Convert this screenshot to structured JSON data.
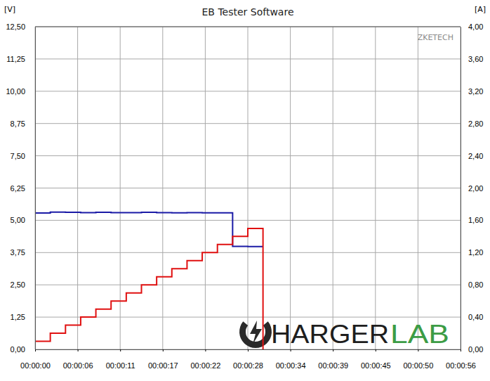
{
  "chart_data": {
    "type": "line",
    "title": "EB Tester Software",
    "y_label": "[V]",
    "y2_label": "[A]",
    "annotations": [
      "ZKETECH",
      "HARGER",
      "LAB"
    ],
    "x": [
      0,
      2,
      4,
      6,
      8,
      10,
      12,
      14,
      16,
      18,
      20,
      22,
      24,
      26,
      28,
      30
    ],
    "series": [
      {
        "color": "#1a1aa6",
        "line_style": "step",
        "axis": "y",
        "values": [
          5.28,
          5.32,
          5.31,
          5.3,
          5.31,
          5.3,
          5.3,
          5.31,
          5.3,
          5.29,
          5.3,
          5.29,
          5.29,
          3.99,
          3.98,
          3.98
        ]
      },
      {
        "color": "#e01010",
        "line_style": "step",
        "axis": "y2",
        "values": [
          0.1,
          0.2,
          0.3,
          0.4,
          0.5,
          0.6,
          0.7,
          0.8,
          0.9,
          1.0,
          1.1,
          1.2,
          1.3,
          1.4,
          1.5,
          0
        ]
      }
    ],
    "xlim": [
      0,
      56
    ],
    "xticks": [
      {
        "value": 0,
        "label": "00:00:00"
      },
      {
        "value": 5.6,
        "label": "00:00:06"
      },
      {
        "value": 11.2,
        "label": "00:00:11"
      },
      {
        "value": 16.8,
        "label": "00:00:17"
      },
      {
        "value": 22.4,
        "label": "00:00:22"
      },
      {
        "value": 28,
        "label": "00:00:28"
      },
      {
        "value": 33.6,
        "label": "00:00:34"
      },
      {
        "value": 39.2,
        "label": "00:00:39"
      },
      {
        "value": 44.8,
        "label": "00:00:45"
      },
      {
        "value": 50.4,
        "label": "00:00:50"
      },
      {
        "value": 56,
        "label": "00:00:56"
      }
    ],
    "ylim": [
      0,
      12.5
    ],
    "yticks": [
      {
        "value": 0,
        "label": "0,00"
      },
      {
        "value": 1.25,
        "label": "1,25"
      },
      {
        "value": 2.5,
        "label": "2,50"
      },
      {
        "value": 3.75,
        "label": "3,75"
      },
      {
        "value": 5,
        "label": "5,00"
      },
      {
        "value": 6.25,
        "label": "6,25"
      },
      {
        "value": 7.5,
        "label": "7,50"
      },
      {
        "value": 8.75,
        "label": "8,75"
      },
      {
        "value": 10,
        "label": "10,00"
      },
      {
        "value": 11.25,
        "label": "11,25"
      },
      {
        "value": 12.5,
        "label": "12,50"
      }
    ],
    "y2lim": [
      0,
      4
    ],
    "y2ticks": [
      {
        "value": 0,
        "label": "0,00"
      },
      {
        "value": 0.4,
        "label": "0,40"
      },
      {
        "value": 0.8,
        "label": "0,80"
      },
      {
        "value": 1.2,
        "label": "1,20"
      },
      {
        "value": 1.6,
        "label": "1,60"
      },
      {
        "value": 2,
        "label": "2,00"
      },
      {
        "value": 2.4,
        "label": "2,40"
      },
      {
        "value": 2.8,
        "label": "2,80"
      },
      {
        "value": 3.2,
        "label": "3,20"
      },
      {
        "value": 3.6,
        "label": "3,60"
      },
      {
        "value": 4,
        "label": "4,00"
      }
    ],
    "grid": true
  }
}
